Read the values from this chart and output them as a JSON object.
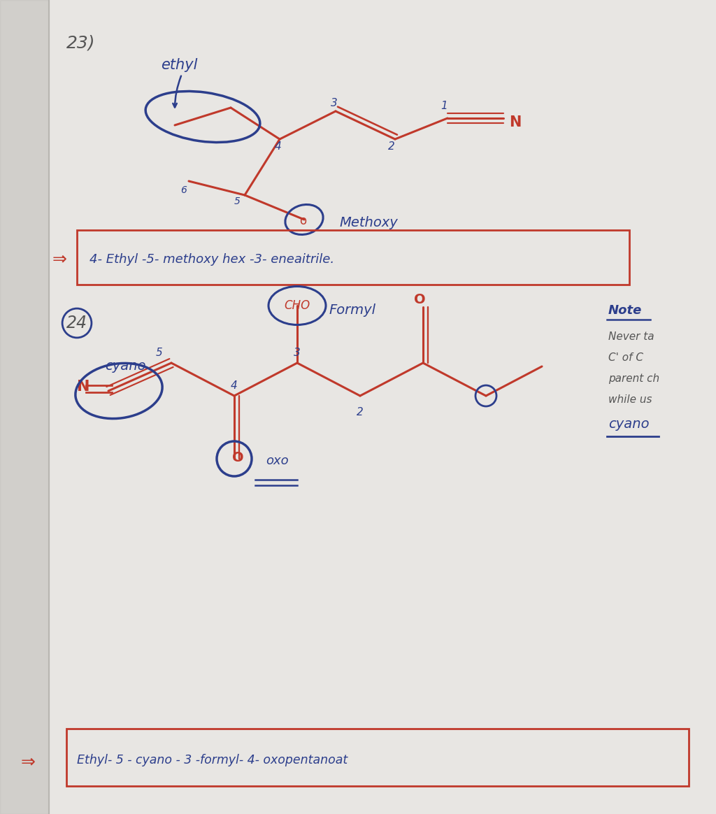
{
  "bg_color": "#e8e6e3",
  "bg_left_strip": "#c8c4be",
  "mol_color": "#c0392b",
  "blue_color": "#2c3e8c",
  "dark_color": "#333333",
  "answer23": "4- Ethyl -5- methoxy hex -3- eneaitrile.",
  "answer24": "Ethyl- 5 - cyano - 3 -formyl- 4- oxopentanoat",
  "label_ethyl": "ethyl",
  "label_methoxy": "Methoxy",
  "label_cyano": "cyano",
  "label_formyl": "Formyl",
  "label_oxo": "oxo",
  "label_cho": "CHO",
  "label_note": "Note",
  "label_never": "Never ta",
  "label_cof": "C' of C",
  "label_parent": "parent ch",
  "label_while": "while us",
  "label_cyano2": "cyano"
}
